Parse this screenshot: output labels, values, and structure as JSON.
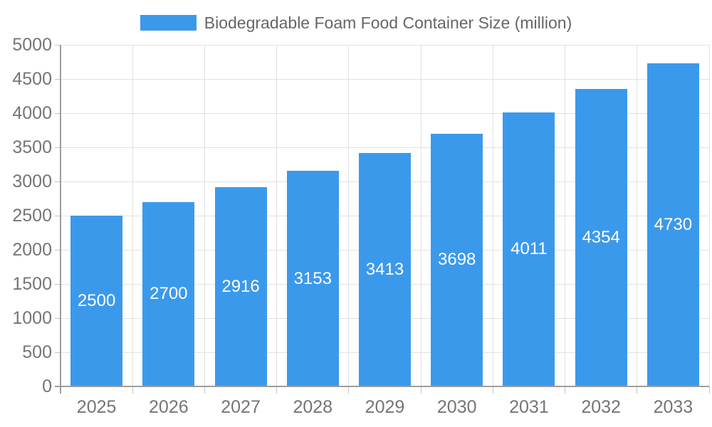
{
  "legend": {
    "label": "Biodegradable Foam Food Container Size (million)"
  },
  "chart_data": {
    "type": "bar",
    "title": "Biodegradable Foam Food Container Size (million)",
    "categories": [
      "2025",
      "2026",
      "2027",
      "2028",
      "2029",
      "2030",
      "2031",
      "2032",
      "2033"
    ],
    "values": [
      2500,
      2700,
      2916,
      3153,
      3413,
      3698,
      4011,
      4354,
      4730
    ],
    "xlabel": "",
    "ylabel": "",
    "ylim": [
      0,
      5000
    ],
    "y_ticks": [
      0,
      500,
      1000,
      1500,
      2000,
      2500,
      3000,
      3500,
      4000,
      4500,
      5000
    ],
    "grid": true,
    "legend_position": "top-center",
    "bar_label_position": "inside-center",
    "colors": {
      "bar": "#3B99EC",
      "bar_label": "#FFFFFF",
      "axis_line": "#9E9E9E",
      "gridline": "#E2E2E2",
      "tick": "#C2C2C2",
      "axis_text": "#757575",
      "legend_text": "#666666",
      "background": "#FFFFFF"
    }
  }
}
